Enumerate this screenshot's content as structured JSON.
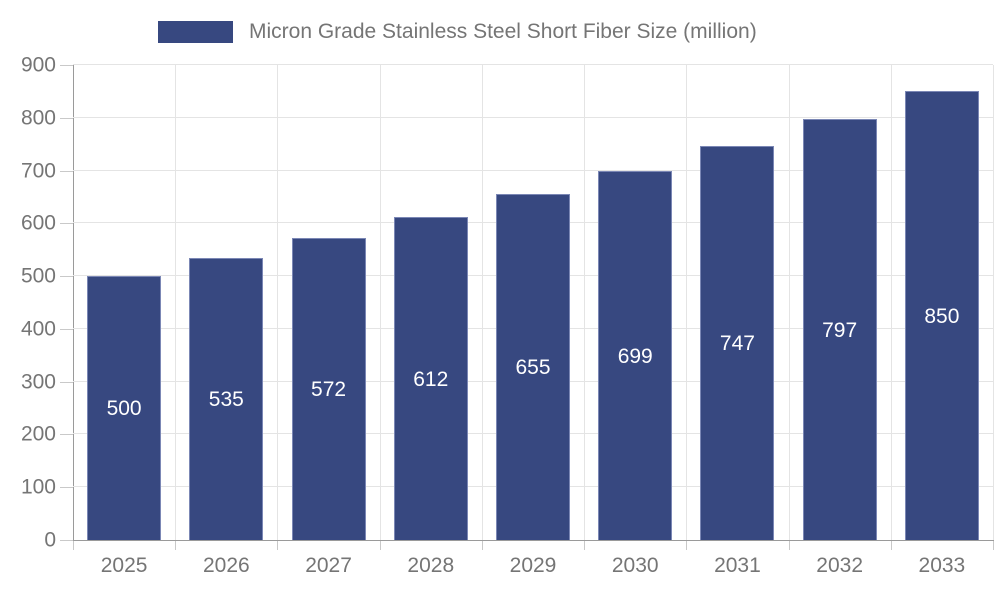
{
  "legend": {
    "label": "Micron Grade Stainless Steel Short Fiber Size (million)"
  },
  "chart_data": {
    "type": "bar",
    "title": "",
    "xlabel": "",
    "ylabel": "",
    "categories": [
      "2025",
      "2026",
      "2027",
      "2028",
      "2029",
      "2030",
      "2031",
      "2032",
      "2033"
    ],
    "series": [
      {
        "name": "Micron Grade Stainless Steel Short Fiber Size (million)",
        "values": [
          500,
          535,
          572,
          612,
          655,
          699,
          747,
          797,
          850
        ]
      }
    ],
    "data_labels_visible": true,
    "ylim": [
      0,
      900
    ],
    "yticks": [
      0,
      100,
      200,
      300,
      400,
      500,
      600,
      700,
      800,
      900
    ],
    "grid": true,
    "legend_position": "top",
    "colors": {
      "bar_fill": "#374880",
      "bar_edge": "#7b87b5",
      "value_label": "#ffffff",
      "axis_text": "#757575",
      "axis_line": "#9a9a9a",
      "gridline": "#e4e4e4"
    }
  }
}
